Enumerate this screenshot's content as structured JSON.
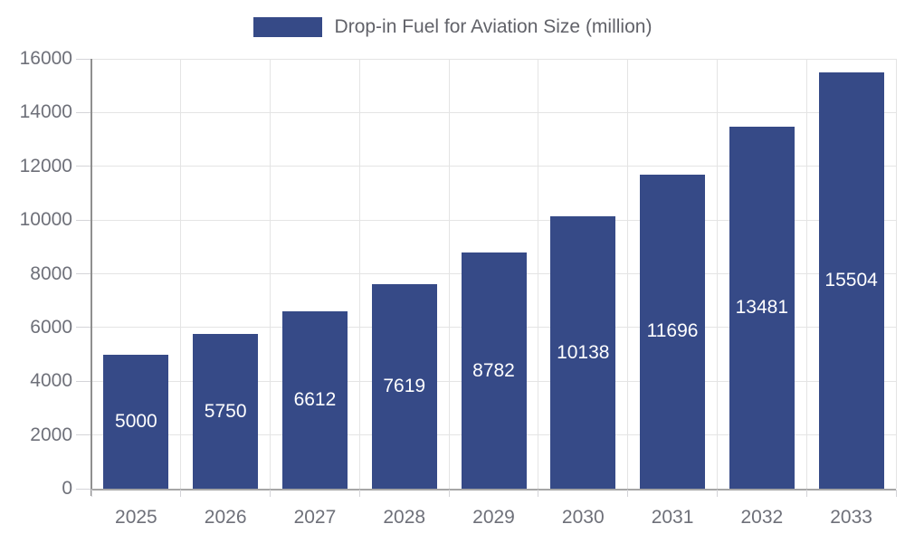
{
  "legend": {
    "label": "Drop-in Fuel for Aviation Size (million)"
  },
  "colors": {
    "bar": "#364A87",
    "grid": "#e4e4e4",
    "axis": "#9a9a9a",
    "tick_text": "#6E7079",
    "legend_text": "#616269",
    "bar_label_text": "#ffffff",
    "background": "#ffffff"
  },
  "chart_data": {
    "type": "bar",
    "title": "Drop-in Fuel for Aviation Size (million)",
    "categories": [
      "2025",
      "2026",
      "2027",
      "2028",
      "2029",
      "2030",
      "2031",
      "2032",
      "2033"
    ],
    "values": [
      5000,
      5750,
      6612,
      7619,
      8782,
      10138,
      11696,
      13481,
      15504
    ],
    "series": [
      {
        "name": "Drop-in Fuel for Aviation Size (million)",
        "values": [
          5000,
          5750,
          6612,
          7619,
          8782,
          10138,
          11696,
          13481,
          15504
        ]
      }
    ],
    "xlabel": "",
    "ylabel": "",
    "ylim": [
      0,
      16000
    ],
    "ytick_step": 2000,
    "yticks": [
      0,
      2000,
      4000,
      6000,
      8000,
      10000,
      12000,
      14000,
      16000
    ],
    "grid": true,
    "legend_position": "top-center",
    "bar_labels": "inside-center-white"
  }
}
